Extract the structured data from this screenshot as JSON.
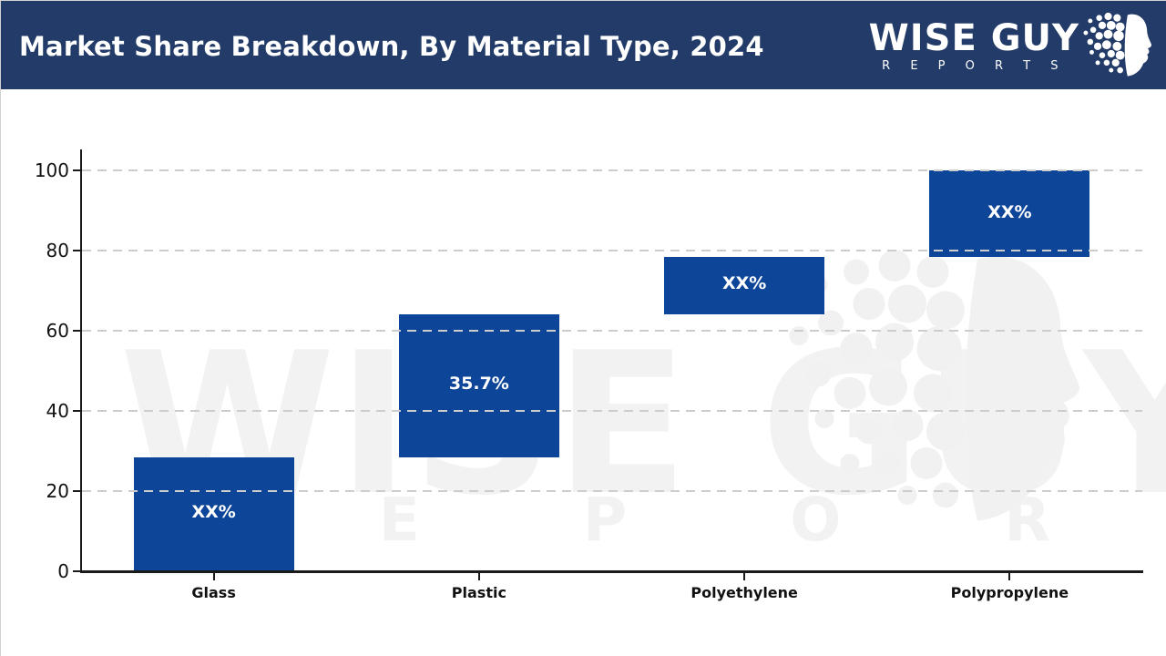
{
  "header": {
    "title": "Market Share Breakdown, By Material Type, 2024",
    "logo_line1": "WISE GUY",
    "logo_line2": "R E P O R T S"
  },
  "watermark": {
    "line1": "WISE GUY",
    "line2": "R E P O R T S"
  },
  "colors": {
    "header_bg": "#223b68",
    "bar": "#0d4599",
    "grid": "#cdcdcd",
    "axis": "#1a1a1a",
    "watermark": "#f2f2f2",
    "bar_label": "#ffffff"
  },
  "chart_data": {
    "type": "bar",
    "subtype": "floating-waterfall",
    "title": "Market Share Breakdown, By Material Type, 2024",
    "categories": [
      "Glass",
      "Plastic",
      "Polyethylene",
      "Polypropylene"
    ],
    "series": [
      {
        "name": "Glass",
        "start": 0,
        "end": 28.5,
        "label": "XX%"
      },
      {
        "name": "Plastic",
        "start": 28.5,
        "end": 64.2,
        "label": "35.7%"
      },
      {
        "name": "Polyethylene",
        "start": 64.2,
        "end": 78.4,
        "label": "XX%"
      },
      {
        "name": "Polypropylene",
        "start": 78.4,
        "end": 100,
        "label": "XX%"
      }
    ],
    "xlabel": "",
    "ylabel": "",
    "ylim": [
      0,
      100
    ],
    "yticks": [
      0,
      20,
      40,
      60,
      80,
      100
    ],
    "grid": "dashed-horizontal",
    "legend": "none"
  }
}
